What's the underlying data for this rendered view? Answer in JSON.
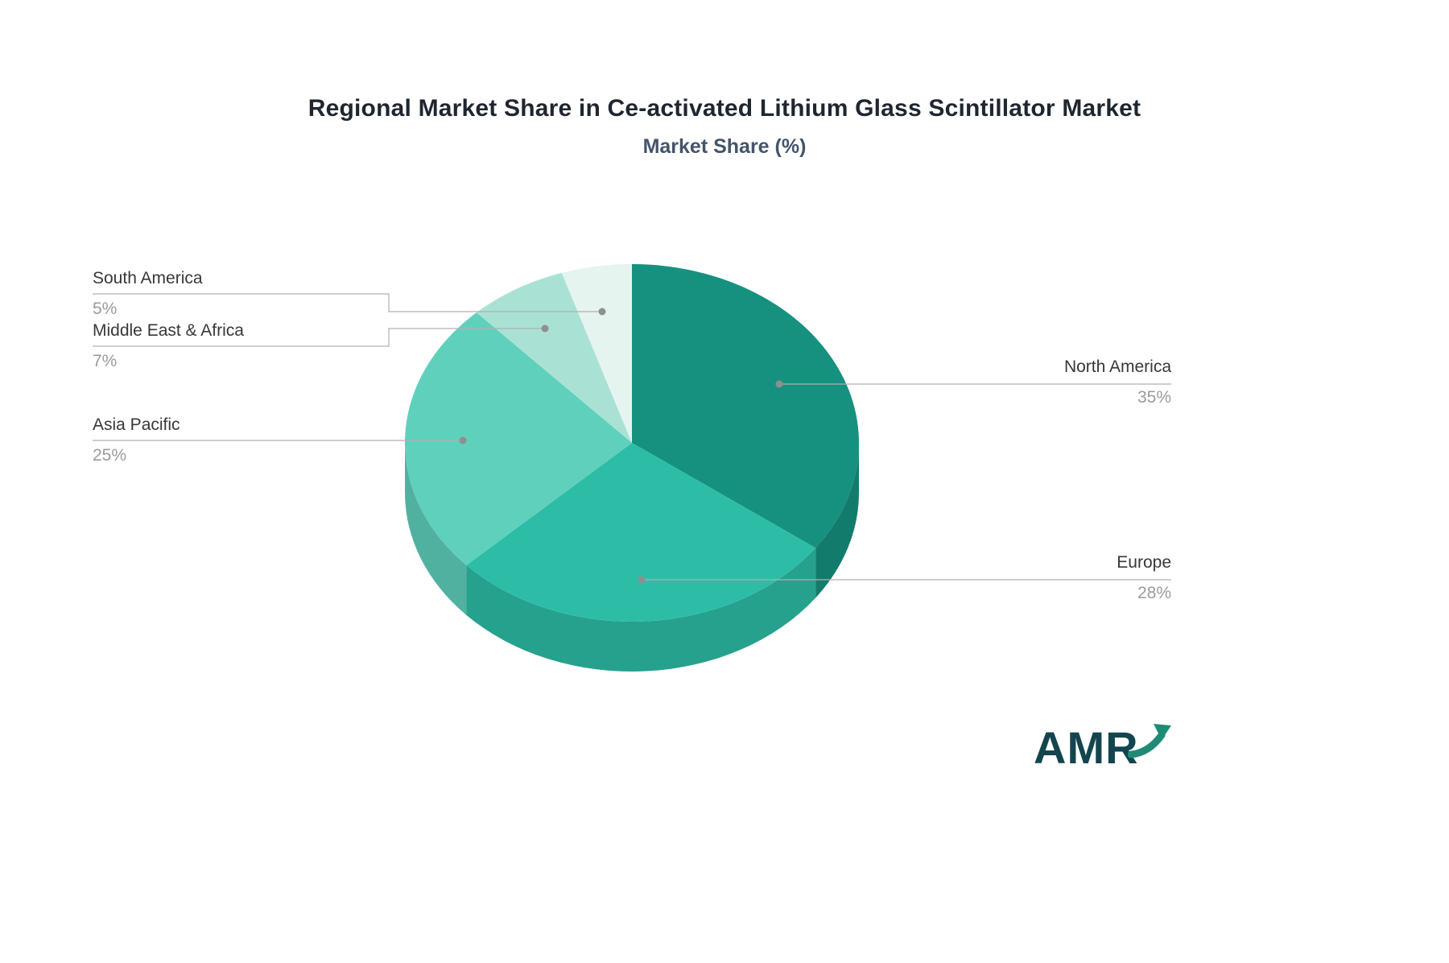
{
  "chart_data": {
    "type": "pie",
    "title": "Regional Market Share in Ce-activated Lithium Glass Scintillator Market",
    "subtitle": "Market Share (%)",
    "unit": "%",
    "direction": "clockwise",
    "start_angle_deg": 0,
    "legend": "none",
    "labels_style": "outside-with-leader-lines",
    "slices": [
      {
        "label": "North America",
        "value": 35,
        "pct_label": "35%",
        "color": "#16917f"
      },
      {
        "label": "Europe",
        "value": 28,
        "pct_label": "28%",
        "color": "#2dbda7"
      },
      {
        "label": "Asia Pacific",
        "value": 25,
        "pct_label": "25%",
        "color": "#5fd0bc"
      },
      {
        "label": "Middle East & Africa",
        "value": 7,
        "pct_label": "7%",
        "color": "#a9e2d4"
      },
      {
        "label": "South America",
        "value": 5,
        "pct_label": "5%",
        "color": "#e6f4f0"
      }
    ]
  },
  "logo": {
    "text": "AMR"
  }
}
